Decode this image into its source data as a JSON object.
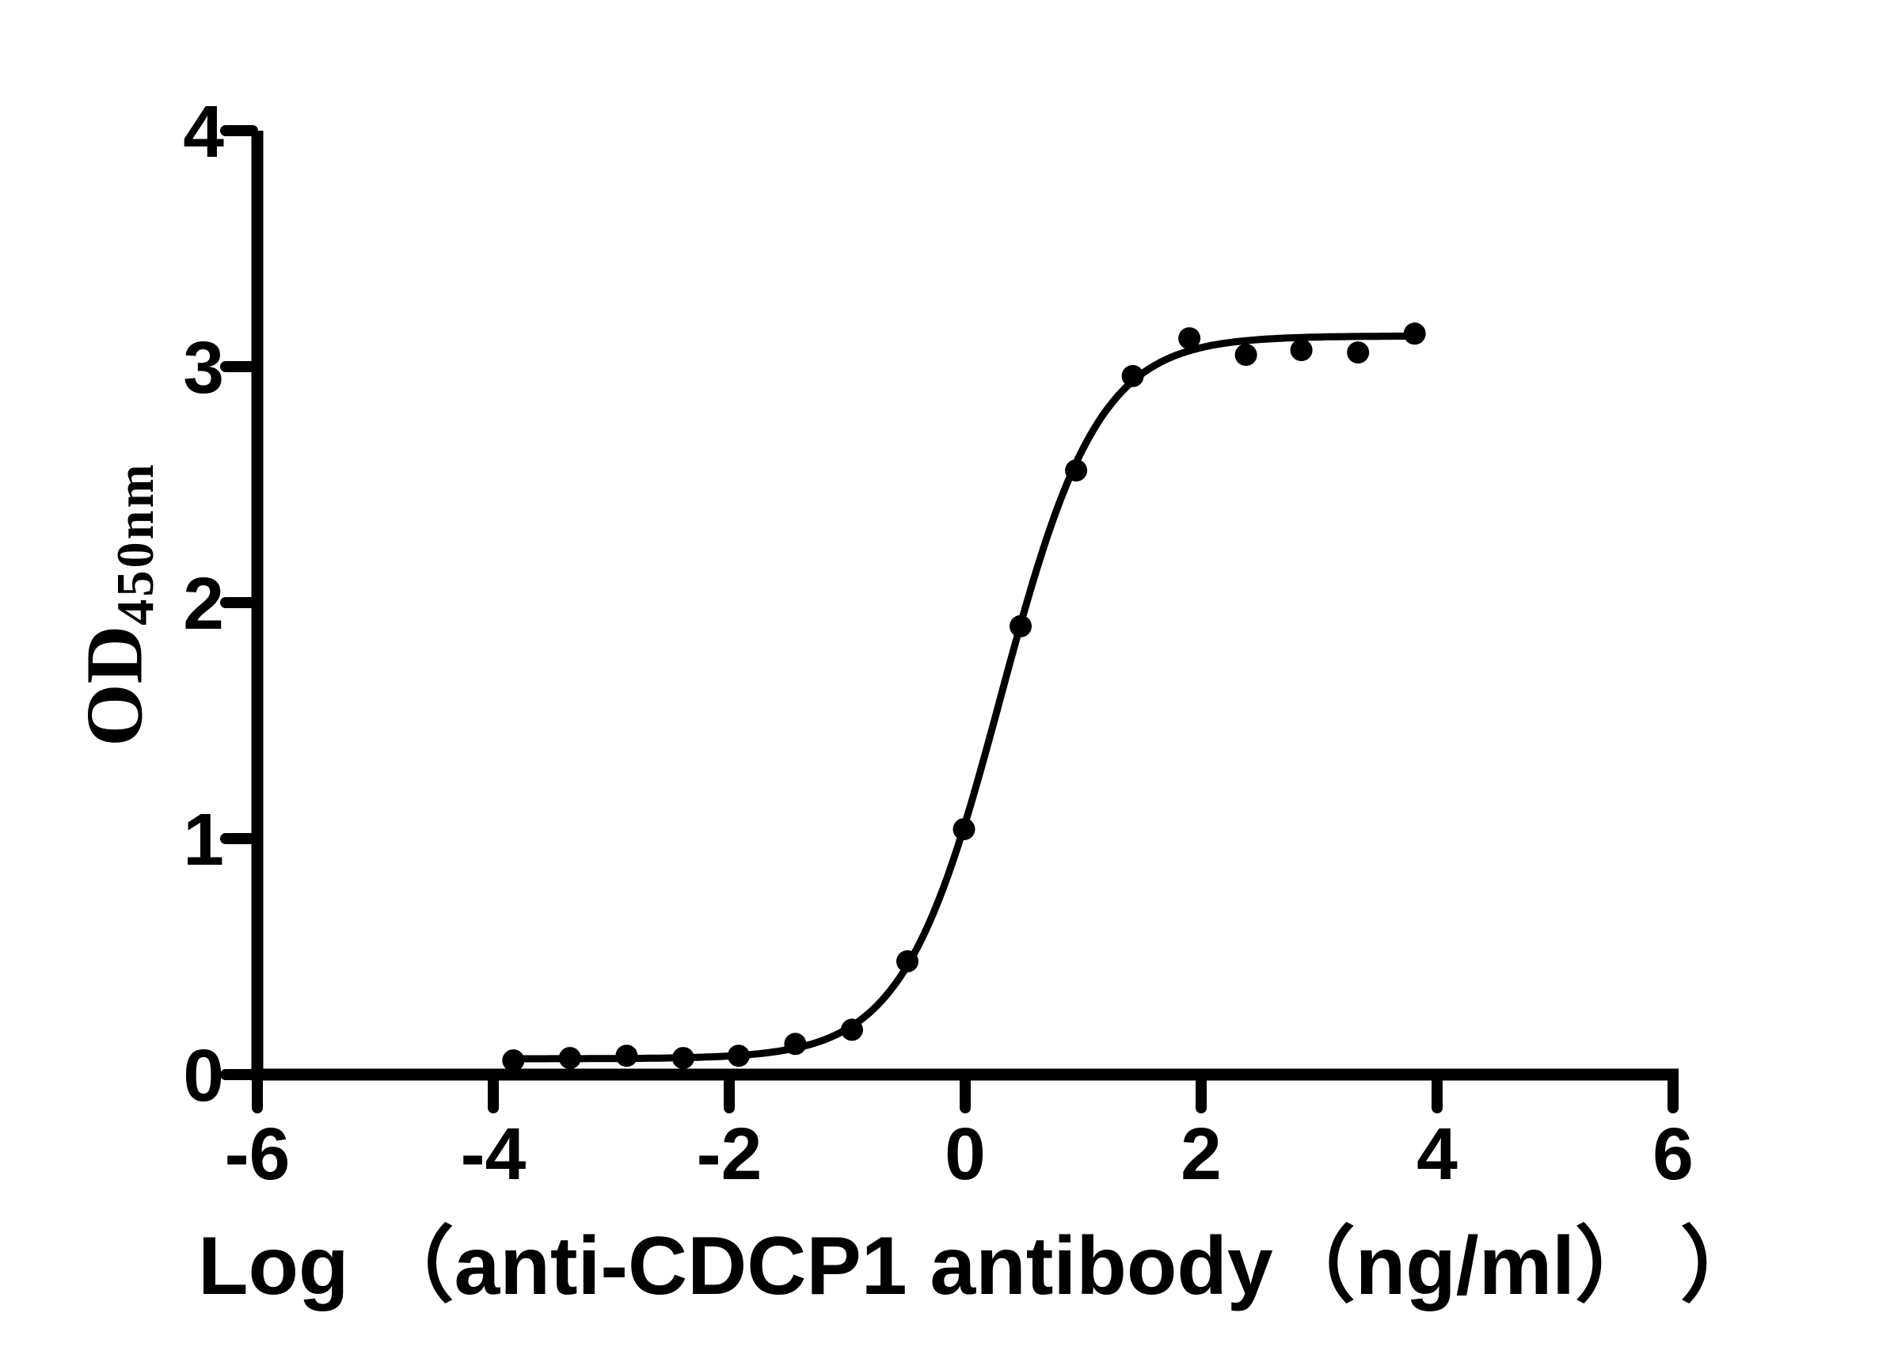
{
  "figure": {
    "background": "#ffffff",
    "ink_color": "#000000"
  },
  "chart_data": {
    "type": "scatter",
    "title": "",
    "xlabel": "Log （anti-CDCP1 antibody（ng/ml） ）",
    "ylabel_base": "OD",
    "ylabel_sub": "450nm",
    "xlim": [
      -6,
      6
    ],
    "ylim": [
      0,
      4
    ],
    "x_ticks": [
      -6,
      -4,
      -2,
      0,
      2,
      4,
      6
    ],
    "y_ticks": [
      0,
      1,
      2,
      3,
      4
    ],
    "grid": false,
    "legend_position": "none",
    "marker_color": "#000000",
    "curve_color": "#000000",
    "points": [
      {
        "x": -3.83,
        "y": 0.06
      },
      {
        "x": -3.35,
        "y": 0.07
      },
      {
        "x": -2.87,
        "y": 0.08
      },
      {
        "x": -2.39,
        "y": 0.07
      },
      {
        "x": -1.92,
        "y": 0.08
      },
      {
        "x": -1.44,
        "y": 0.13
      },
      {
        "x": -0.96,
        "y": 0.19
      },
      {
        "x": -0.49,
        "y": 0.48
      },
      {
        "x": -0.01,
        "y": 1.04
      },
      {
        "x": 0.47,
        "y": 1.9
      },
      {
        "x": 0.94,
        "y": 2.56
      },
      {
        "x": 1.42,
        "y": 2.96
      },
      {
        "x": 1.9,
        "y": 3.12
      },
      {
        "x": 2.38,
        "y": 3.05
      },
      {
        "x": 2.85,
        "y": 3.07
      },
      {
        "x": 3.33,
        "y": 3.06
      },
      {
        "x": 3.81,
        "y": 3.14
      }
    ],
    "fit_curve": {
      "model": "4PL",
      "bottom": 0.067,
      "top": 3.13,
      "log_ec50": 0.3,
      "hill": 1.05,
      "x_start": -3.83,
      "x_end": 3.81
    }
  }
}
